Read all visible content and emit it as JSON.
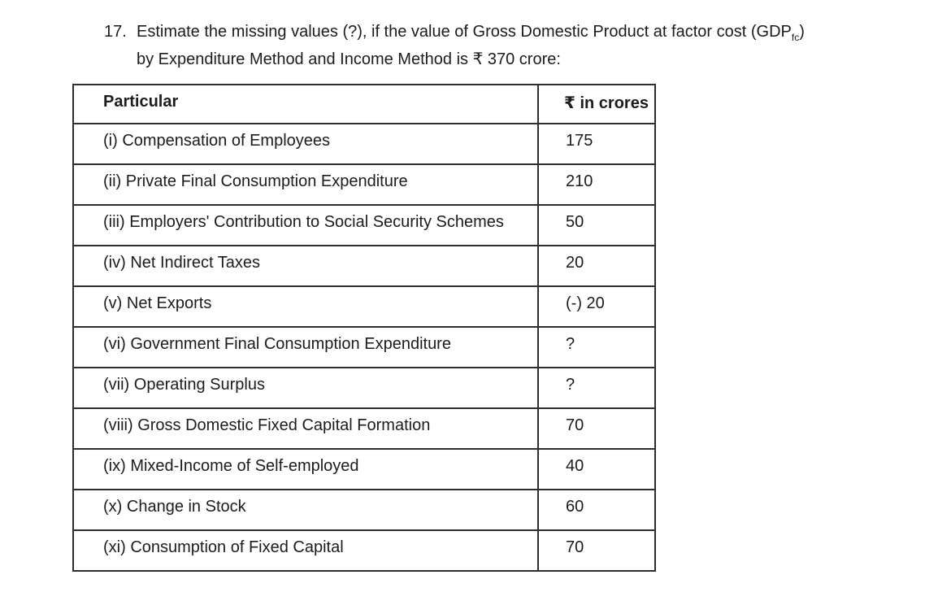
{
  "question": {
    "number": "17.",
    "line1_before_sub": "Estimate the missing values (?), if the value of Gross Domestic Product at factor cost (GDP",
    "subscript": "fc",
    "line1_after_sub": ")",
    "line2": "by Expenditure Method and Income Method is ₹ 370 crore:"
  },
  "table": {
    "headers": [
      "Particular",
      "₹ in crores"
    ],
    "rows": [
      {
        "particular": "(i) Compensation of Employees",
        "value": "175"
      },
      {
        "particular": "(ii) Private Final Consumption Expenditure",
        "value": "210"
      },
      {
        "particular": "(iii) Employers' Contribution to Social Security Schemes",
        "value": "50"
      },
      {
        "particular": "(iv) Net Indirect Taxes",
        "value": "20"
      },
      {
        "particular": "(v) Net Exports",
        "value": "(-) 20"
      },
      {
        "particular": "(vi) Government Final Consumption Expenditure",
        "value": "?"
      },
      {
        "particular": "(vii) Operating Surplus",
        "value": "?"
      },
      {
        "particular": "(viii) Gross Domestic Fixed Capital Formation",
        "value": "70"
      },
      {
        "particular": "(ix) Mixed-Income of Self-employed",
        "value": "40"
      },
      {
        "particular": "(x) Change in Stock",
        "value": "60"
      },
      {
        "particular": "(xi) Consumption of Fixed Capital",
        "value": "70"
      }
    ]
  },
  "colors": {
    "text": "#1c1c1c",
    "border": "#2e2e2e",
    "background": "#ffffff"
  }
}
